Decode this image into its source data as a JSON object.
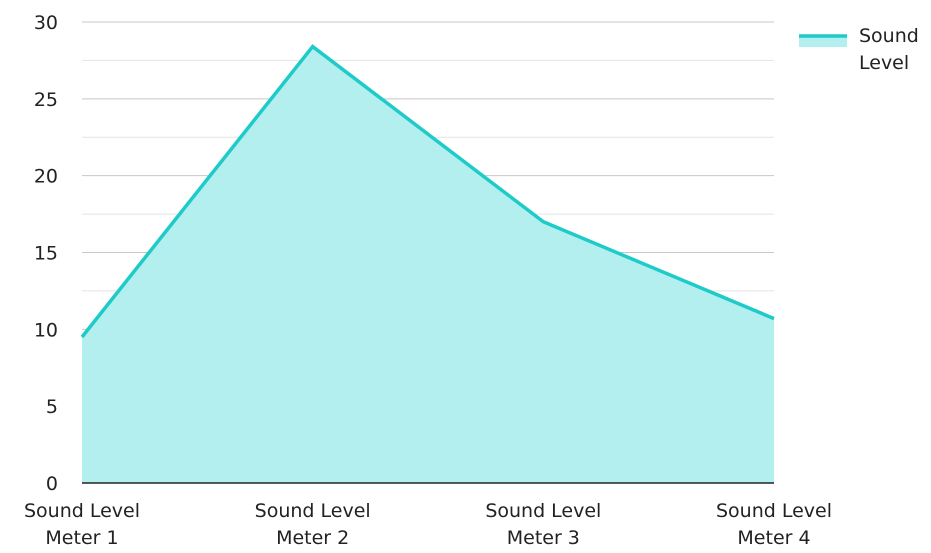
{
  "chart_data": {
    "type": "area",
    "categories": [
      [
        "Sound Level",
        "Meter 1"
      ],
      [
        "Sound Level",
        "Meter 2"
      ],
      [
        "Sound Level",
        "Meter 3"
      ],
      [
        "Sound Level",
        "Meter 4"
      ]
    ],
    "series": [
      {
        "name": "Sound Level",
        "values": [
          9.5,
          28.4,
          17,
          10.7
        ],
        "line_color": "#1ECBC9",
        "fill_color": "#B2EFEE"
      }
    ],
    "ylim": [
      0,
      30
    ],
    "y_ticks": [
      0,
      5,
      10,
      15,
      20,
      25,
      30
    ],
    "grid": true,
    "legend": {
      "position": "top-right",
      "lines": [
        "Sound",
        "Level"
      ]
    },
    "title": "",
    "xlabel": "",
    "ylabel": ""
  }
}
